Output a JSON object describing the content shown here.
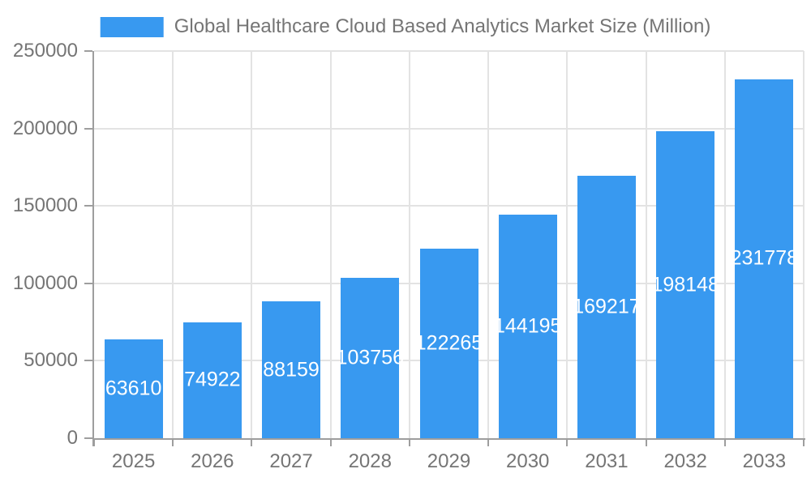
{
  "chart_data": {
    "type": "bar",
    "title": "Global Healthcare Cloud Based Analytics Market Size (Million)",
    "legend": {
      "position": "top",
      "label": "Global Healthcare Cloud Based Analytics Market Size (Million)"
    },
    "categories": [
      "2025",
      "2026",
      "2027",
      "2028",
      "2029",
      "2030",
      "2031",
      "2032",
      "2033"
    ],
    "values": [
      63610,
      74922,
      88159,
      103756,
      122265,
      144195,
      169217,
      198148,
      231778
    ],
    "value_labels": [
      "63610",
      "74922",
      "88159",
      "103756",
      "122265",
      "144195",
      "169217",
      "198148",
      "231778"
    ],
    "xlabel": "",
    "ylabel": "",
    "ylim": [
      0,
      250000
    ],
    "yticks": [
      0,
      50000,
      100000,
      150000,
      200000,
      250000
    ],
    "ytick_labels": [
      "0",
      "50000",
      "100000",
      "150000",
      "200000",
      "250000"
    ],
    "grid": true,
    "value_label_position": "centered-inside-bar",
    "colors": {
      "bar": "#3899F0",
      "grid": "#E3E3E3",
      "axis": "#9E9E9E",
      "text": "#757575",
      "value_label": "#FFFFFF",
      "background": "#FFFFFF"
    }
  }
}
